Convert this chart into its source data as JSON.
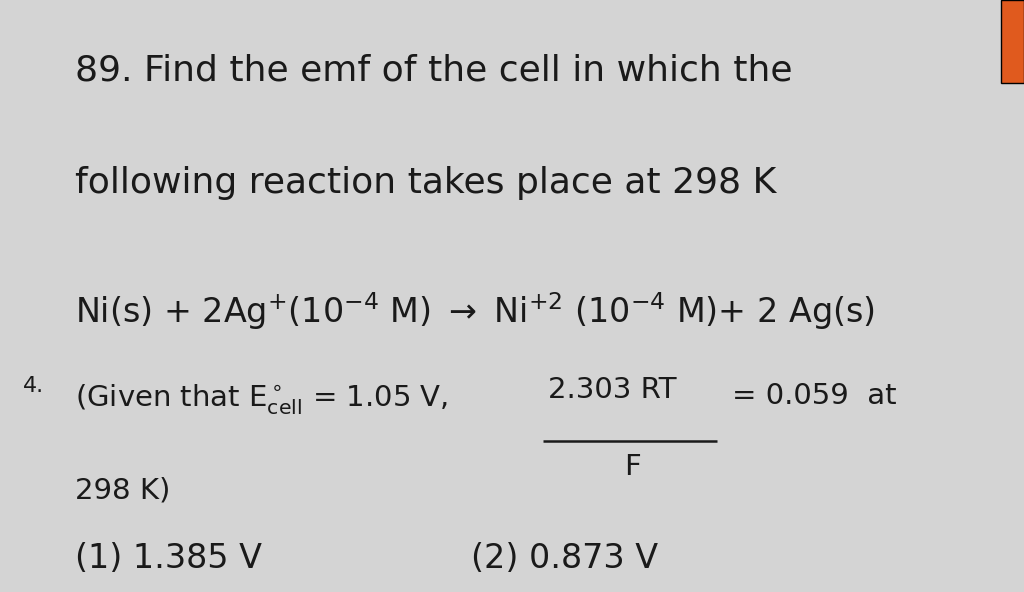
{
  "background_color": "#d4d4d4",
  "text_color": "#1a1a1a",
  "fig_width": 10.24,
  "fig_height": 5.92,
  "dpi": 100,
  "title_line1": "89. Find the emf of the cell in which the",
  "title_line2": "following reaction takes place at 298 K",
  "reaction": "Ni(s) + 2Ag⁺(10⁻⁴ M) → Ni⁺² (10⁻⁴ M)+ 2 Ag(s)",
  "note_num": "4.",
  "given_text": "(Given that E°",
  "given_sub": "cell",
  "given_mid": " = 1.05 V,",
  "frac_num": "2.303 RT",
  "frac_den": "F",
  "frac_eq": "= 0.059  at",
  "given_end": "298 K)",
  "answer1": "(1) 1.385 V",
  "answer2": "(2) 0.873 V",
  "orange_color": "#e05a1e",
  "title_fontsize": 26,
  "reaction_fontsize": 24,
  "given_fontsize": 21,
  "answer_fontsize": 24,
  "note_fontsize": 16
}
